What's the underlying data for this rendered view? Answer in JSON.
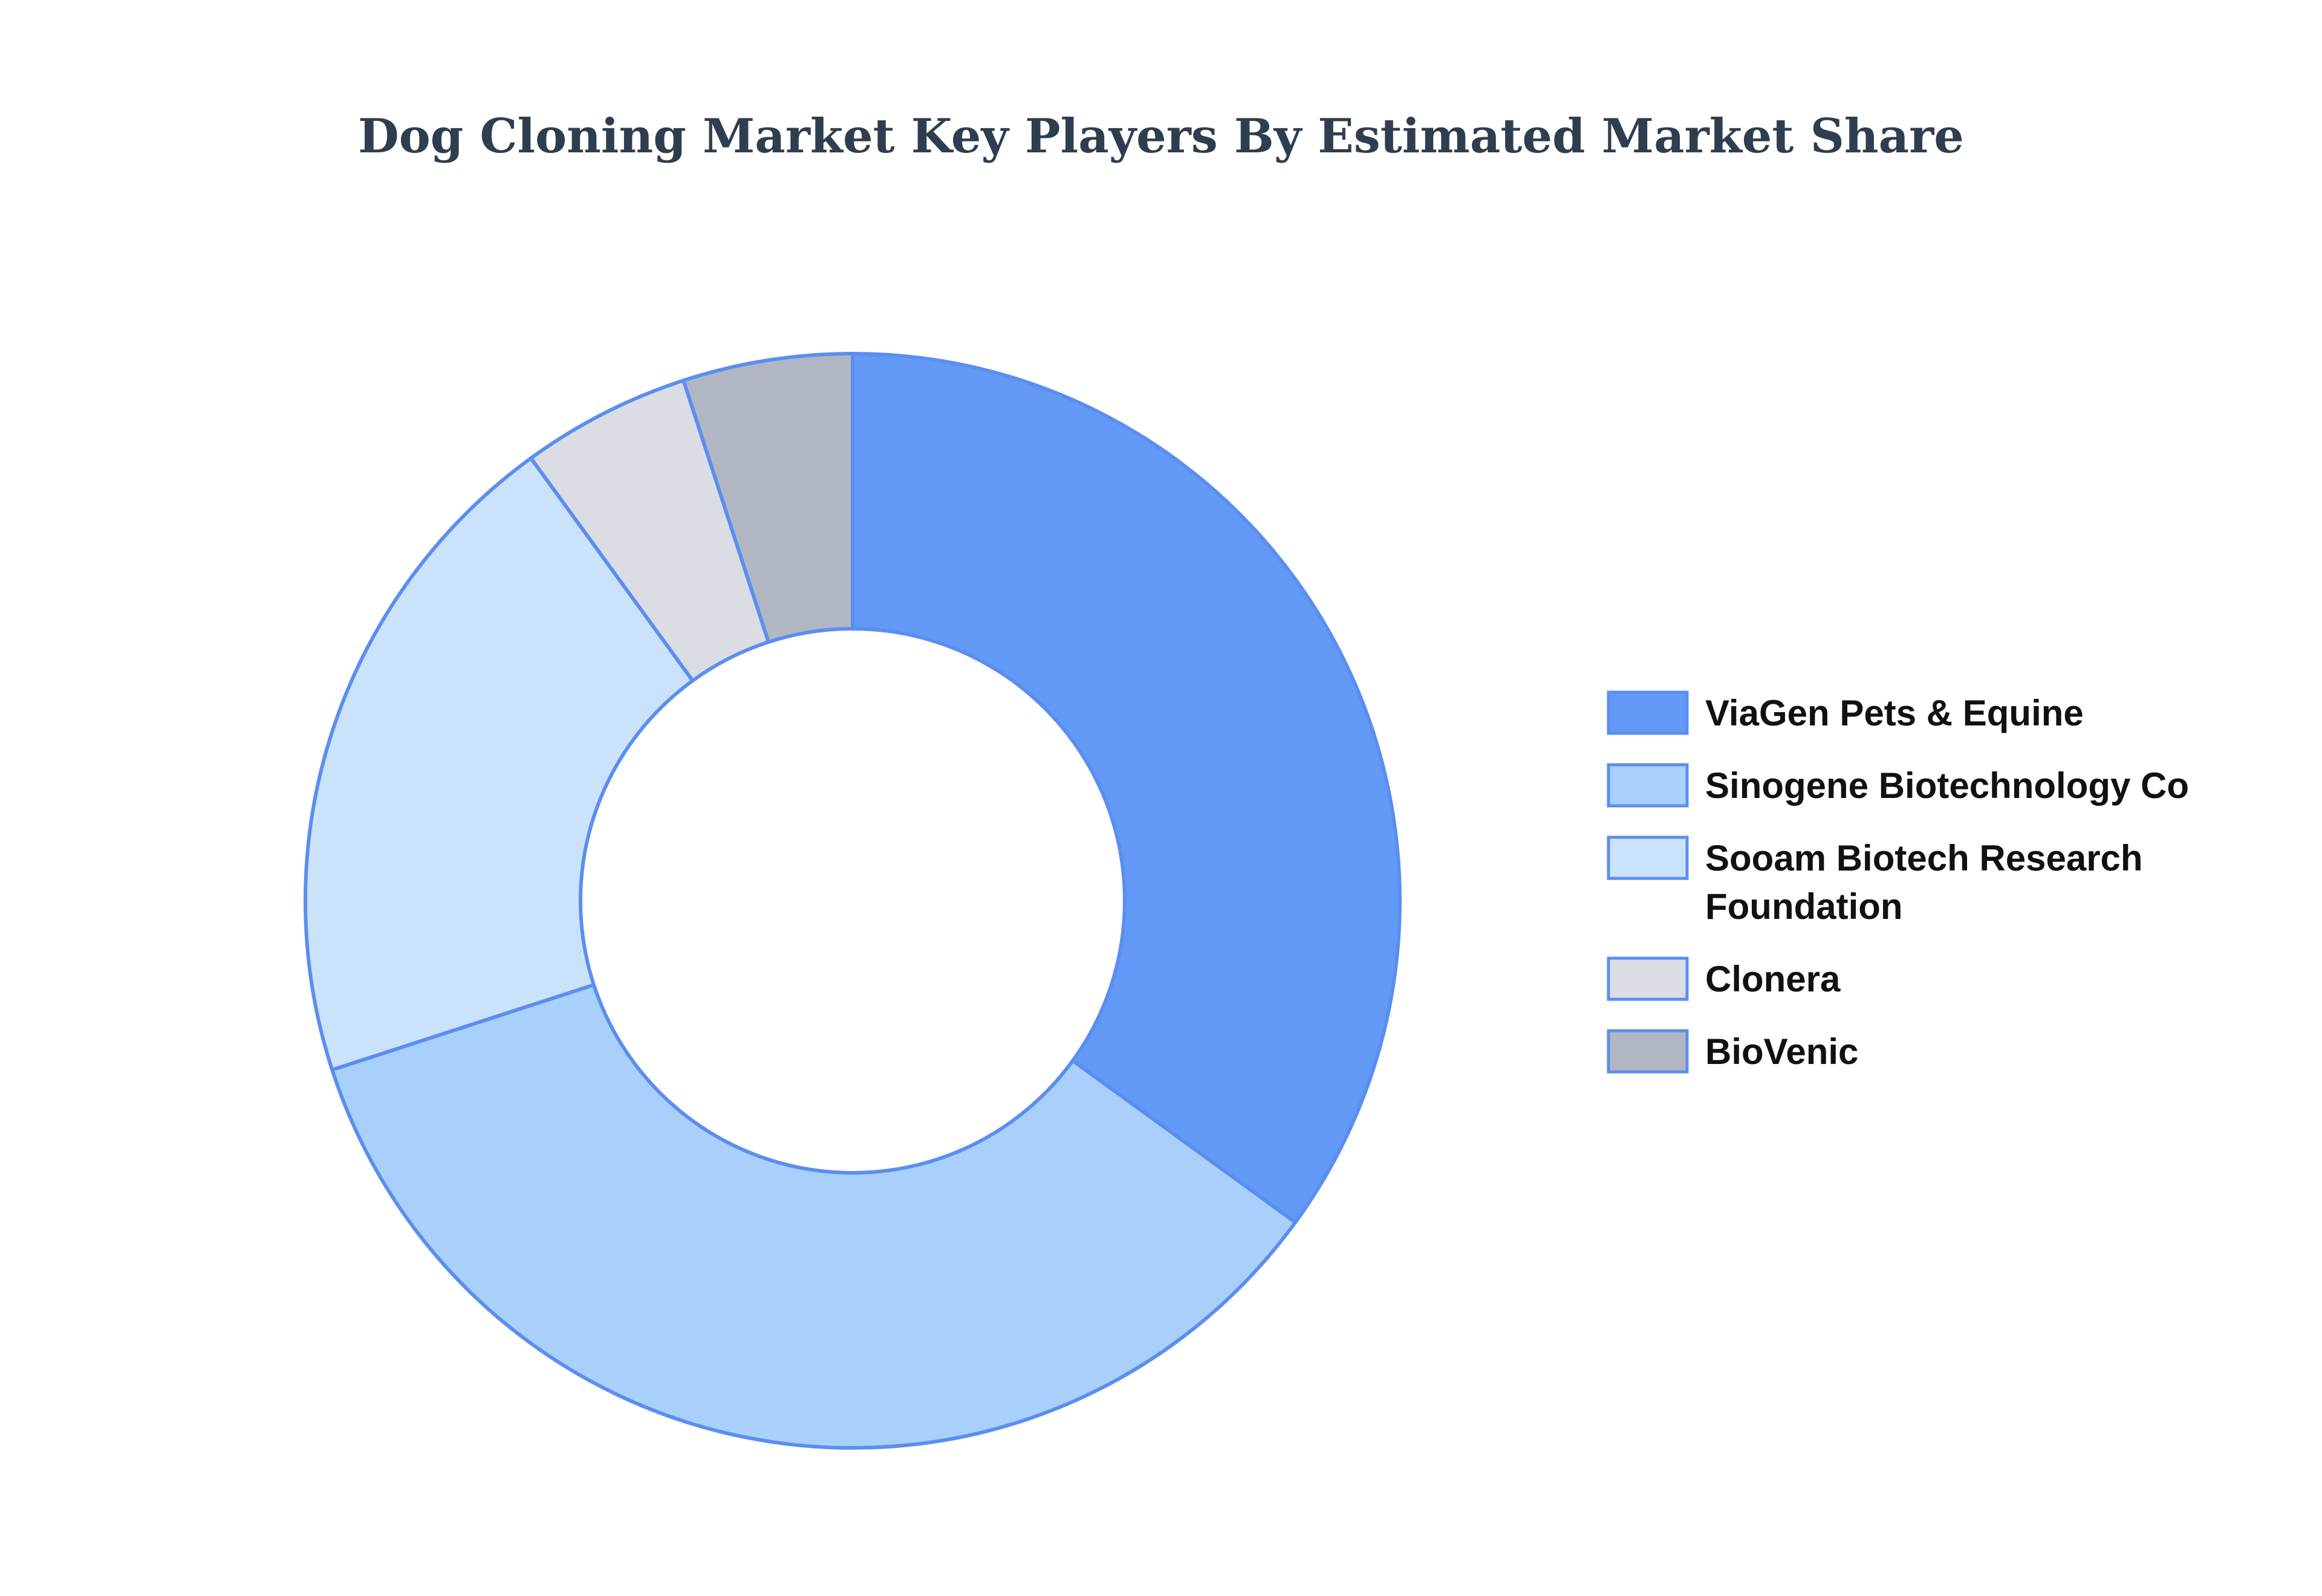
{
  "chart_data": {
    "type": "pie",
    "variant": "donut",
    "title": "Dog Cloning Market Key Players By Estimated Market Share",
    "legend_position": "right",
    "outline_color": "#5b8ef0",
    "series": [
      {
        "name": "ViaGen Pets & Equine",
        "value": 35,
        "color": "#6399f7"
      },
      {
        "name": "Sinogene Biotechnology Co",
        "value": 35,
        "color": "#a8d0fb"
      },
      {
        "name": "Sooam Biotech Research Foundation",
        "value": 20,
        "color": "#cbe2fb"
      },
      {
        "name": "Clonera",
        "value": 5,
        "color": "#dadde3"
      },
      {
        "name": "BioVenic",
        "value": 5,
        "color": "#b1b7c2"
      }
    ]
  }
}
